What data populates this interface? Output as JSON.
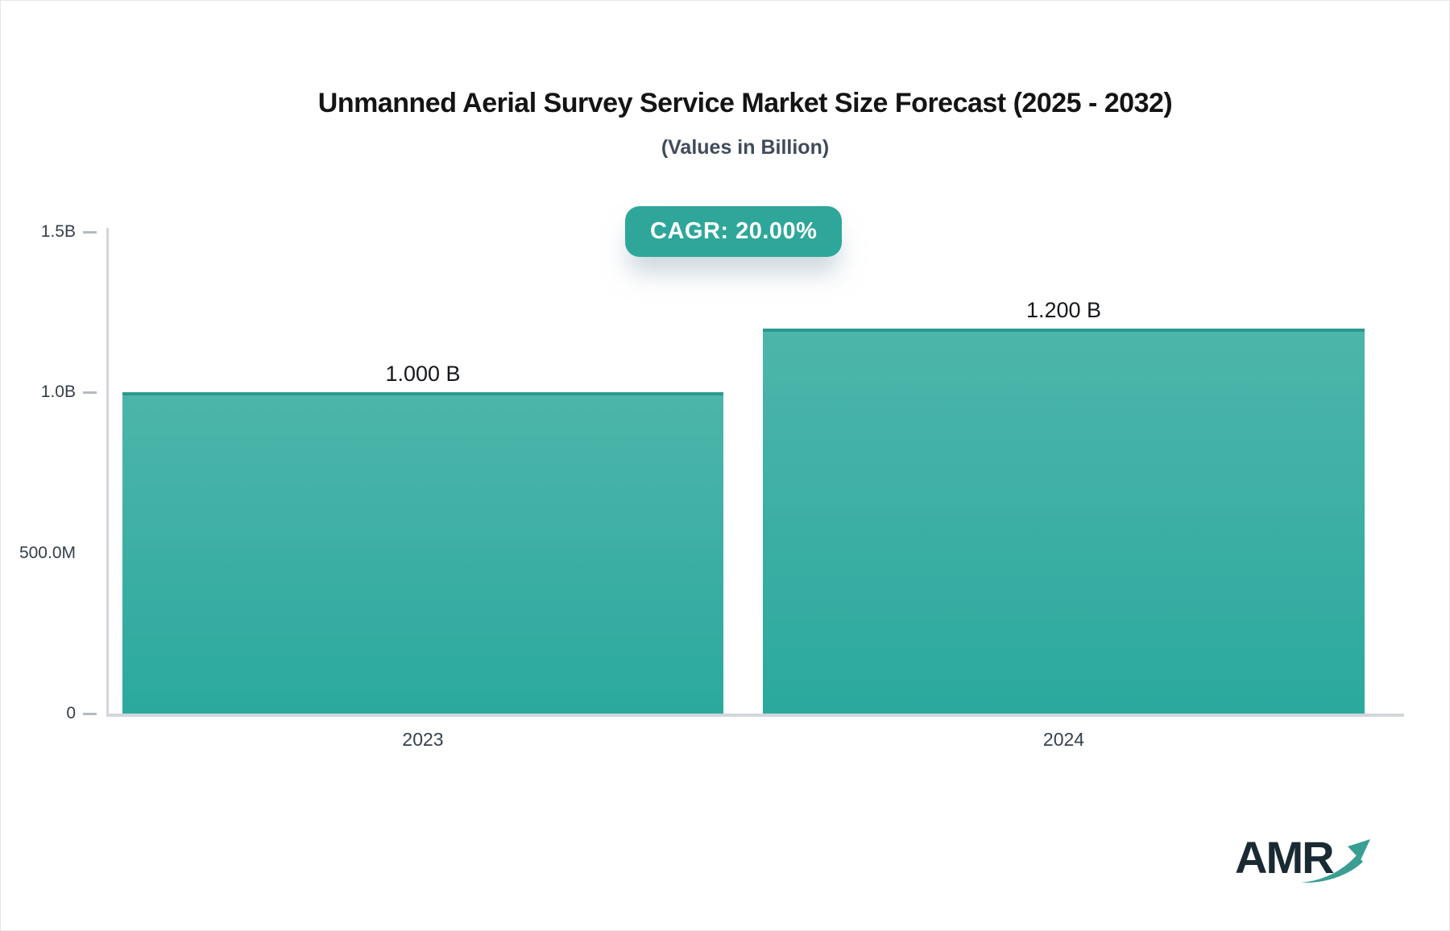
{
  "header": {
    "title": "Unmanned Aerial Survey Service Market Size Forecast (2025 - 2032)",
    "subtitle": "(Values in Billion)"
  },
  "badge": {
    "label": "CAGR: 20.00%"
  },
  "chart_data": {
    "type": "bar",
    "title": "Unmanned Aerial Survey Service Market Size Forecast (2025 - 2032)",
    "subtitle": "(Values in Billion)",
    "cagr_label": "CAGR: 20.00%",
    "categories": [
      "2023",
      "2024"
    ],
    "values_billion": [
      1.0,
      1.2
    ],
    "bar_labels": [
      "1.000 B",
      "1.200 B"
    ],
    "ylim_billion": [
      0,
      1.5
    ],
    "yticks": [
      {
        "label": "1.5B",
        "value_billion": 1.5,
        "dash": true
      },
      {
        "label": "1.0B",
        "value_billion": 1.0,
        "dash": true
      },
      {
        "label": "500.0M",
        "value_billion": 0.5,
        "dash": false
      },
      {
        "label": "0",
        "value_billion": 0.0,
        "dash": true
      }
    ],
    "grid": false,
    "legend": "none",
    "colors": {
      "bar_gradient_top": "#4db5aa",
      "bar_gradient_bottom": "#2ba99d",
      "bar_top_edge": "#2a9a90",
      "badge_background": "#2ea79a",
      "axis_line": "#d2d6dc",
      "tick_dash": "#b3bac2"
    }
  },
  "logo": {
    "text": "AMR"
  }
}
